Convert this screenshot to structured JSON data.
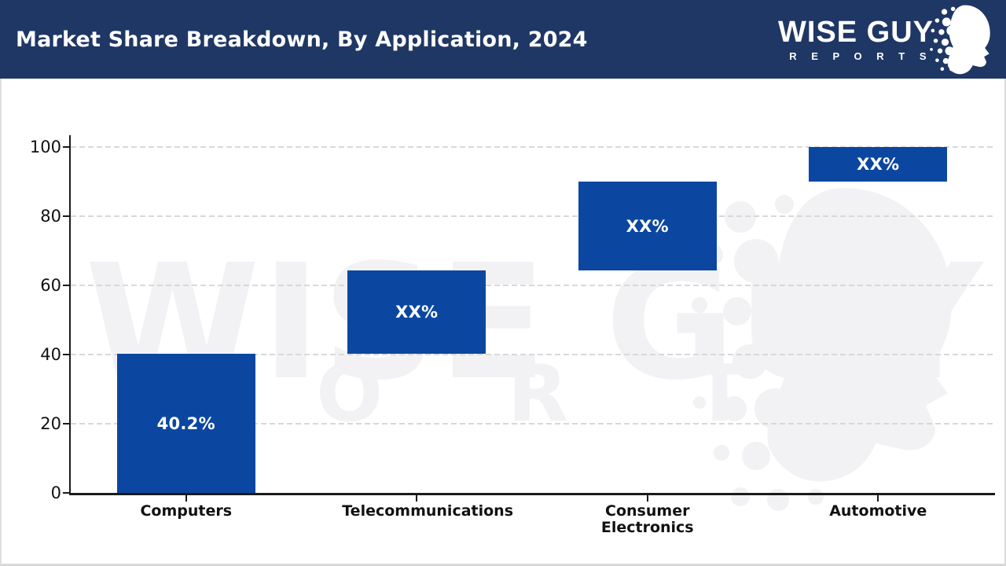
{
  "header": {
    "title": "Market Share Breakdown, By Application, 2024",
    "logo": {
      "brand_line1": "WISE GUY",
      "brand_line2": "R E P O R T S"
    }
  },
  "watermark": {
    "line1": "WISE GUY",
    "line2": "P O R T S"
  },
  "colors": {
    "header_bg": "#1F3764",
    "bar_blue": "#0B47A1",
    "grid": "#D8D8D8",
    "axis": "#1A1A1A",
    "watermark": "#F2F2F5",
    "border": "#D9D9D9"
  },
  "chart_data": {
    "type": "bar",
    "variant": "waterfall",
    "title": "Market Share Breakdown, By Application, 2024",
    "categories": [
      "Computers",
      "Telecommunications",
      "Consumer Electronics",
      "Automotive"
    ],
    "segments": [
      {
        "category": "Computers",
        "start": 0,
        "end": 40.2,
        "label": "40.2%"
      },
      {
        "category": "Telecommunications",
        "start": 40.2,
        "end": 64.4,
        "label": "XX%"
      },
      {
        "category": "Consumer Electronics",
        "start": 64.4,
        "end": 89.9,
        "label": "XX%"
      },
      {
        "category": "Automotive",
        "start": 89.9,
        "end": 100,
        "label": "XX%"
      }
    ],
    "ylim": [
      0,
      100
    ],
    "yticks": [
      0,
      20,
      40,
      60,
      80,
      100
    ],
    "xlabel": "",
    "ylabel": "",
    "grid": "horizontal-dashed",
    "legend": "none",
    "bar_value_labels_inside": true
  }
}
